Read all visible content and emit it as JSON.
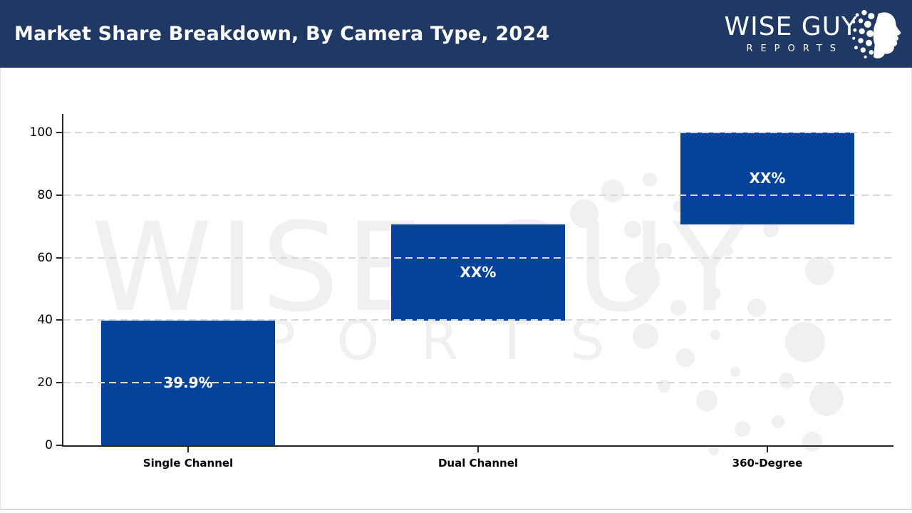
{
  "header": {
    "title": "Market Share Breakdown, By Camera Type, 2024",
    "bg_color": "#203864",
    "logo": {
      "line1": "WISE GUY",
      "line2": "REPORTS"
    }
  },
  "watermark": {
    "line1": "WISE GUY",
    "line2": "REPORTS",
    "color": "#f0f0f2"
  },
  "chart_data": {
    "type": "bar",
    "subtype": "waterfall",
    "title": "Market Share Breakdown, By Camera Type, 2024",
    "categories": [
      "Single Channel",
      "Dual Channel",
      "360-Degree"
    ],
    "segments": [
      {
        "category": "Single Channel",
        "start": 0,
        "end": 39.9,
        "label": "39.9%"
      },
      {
        "category": "Dual Channel",
        "start": 39.9,
        "end": 70.7,
        "label": "XX%"
      },
      {
        "category": "360-Degree",
        "start": 70.7,
        "end": 100,
        "label": "XX%"
      }
    ],
    "yticks": [
      "0",
      "20",
      "40",
      "60",
      "80",
      "100"
    ],
    "ytick_values": [
      0,
      20,
      40,
      60,
      80,
      100
    ],
    "ylim": [
      0,
      105.7
    ],
    "xlabel": "",
    "ylabel": "",
    "legend": "none",
    "grid": {
      "axis": "y",
      "style": "dashed",
      "color": "#d8d8d8",
      "above_bars": true
    },
    "bar_color": "#04429c",
    "bar_label_color": "#ffffff",
    "axis_color": "#262626",
    "tick_label_color": "#000000"
  }
}
